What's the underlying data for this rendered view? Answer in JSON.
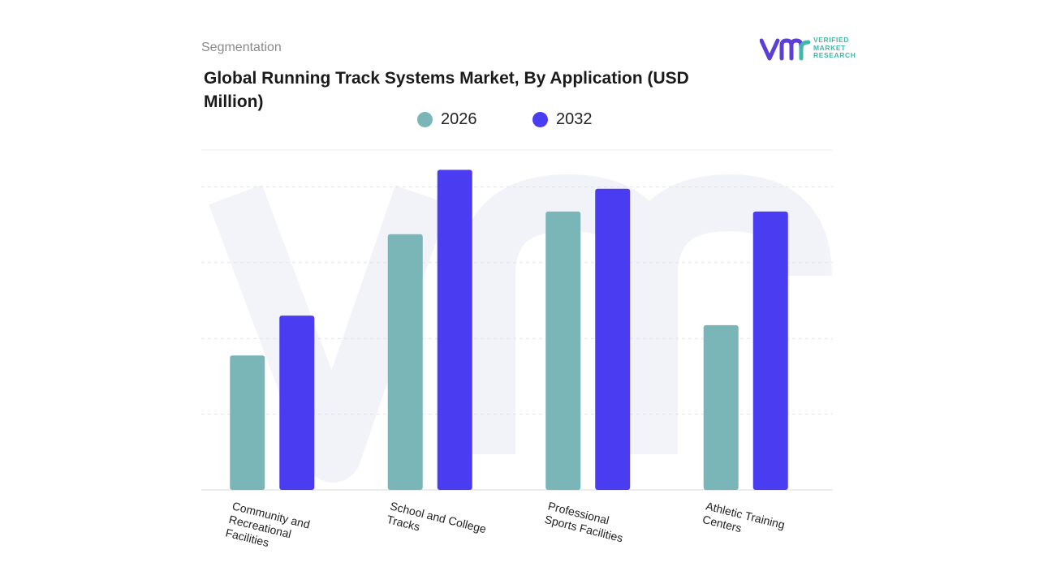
{
  "header": {
    "segmentation_label": "Segmentation",
    "title": "Global Running Track Systems Market, By Application (USD Million)"
  },
  "logo": {
    "mark_icon": "vmr-logo-icon",
    "lines": [
      "VERIFIED",
      "MARKET",
      "RESEARCH"
    ],
    "accent_color": "#3fb8a8",
    "mark_color": "#5b3fd6"
  },
  "chart_data": {
    "type": "bar",
    "title": "Global Running Track Systems Market, By Application (USD Million)",
    "categories": [
      [
        "Community and",
        "Recreational",
        "Facilities"
      ],
      [
        "School and College",
        "Tracks"
      ],
      [
        "Professional",
        "Sports Facilities"
      ],
      [
        "Athletic Training",
        "Centers"
      ]
    ],
    "series": [
      {
        "name": "2026",
        "color": "#7ab5b8",
        "values": [
          35.5,
          67.5,
          73.5,
          43.5
        ]
      },
      {
        "name": "2032",
        "color": "#4a3cf0",
        "values": [
          46,
          84.5,
          79.5,
          73.5
        ]
      }
    ],
    "ylim": [
      0,
      100
    ],
    "grid": true,
    "legend_position": "top-center",
    "xlabel": "",
    "ylabel": ""
  }
}
